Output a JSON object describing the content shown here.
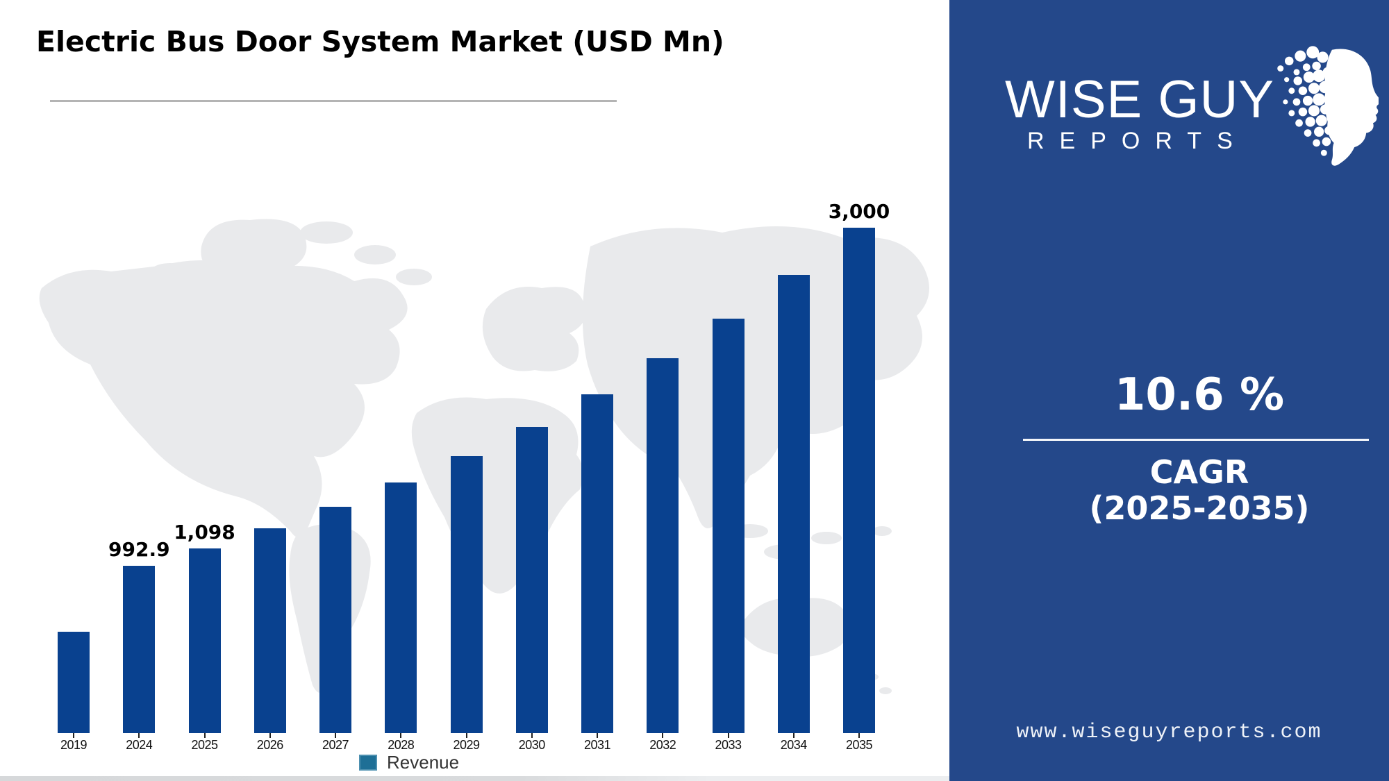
{
  "title": "Electric Bus Door System Market (USD Mn)",
  "legend": {
    "label": "Revenue"
  },
  "panel": {
    "logo_line1": "WISE GUY",
    "logo_line2": "REPORTS",
    "cagr_value": "10.6 %",
    "cagr_line1": "CAGR",
    "cagr_line2": "(2025-2035)",
    "website": "www.wiseguyreports.com"
  },
  "colors": {
    "bar": "#09418f",
    "panel_bg": "#24488a",
    "legend_swatch": "#1e6f96",
    "map": "#e9eaec",
    "title_text": "#000000",
    "white": "#ffffff"
  },
  "chart_data": {
    "type": "bar",
    "title": "Electric Bus Door System Market (USD Mn)",
    "xlabel": "",
    "ylabel": "Revenue (USD Mn)",
    "categories": [
      "2019",
      "2024",
      "2025",
      "2026",
      "2027",
      "2028",
      "2029",
      "2030",
      "2031",
      "2032",
      "2033",
      "2034",
      "2035"
    ],
    "series": [
      {
        "name": "Revenue",
        "values": [
          600,
          992.9,
          1098,
          1214,
          1343,
          1486,
          1643,
          1817,
          2010,
          2223,
          2459,
          2719,
          3000
        ]
      }
    ],
    "bar_labels": {
      "2024": "992.9",
      "2025": "1,098",
      "2035": "3,000"
    },
    "ylim": [
      0,
      3100
    ],
    "grid": false,
    "legend_position": "bottom",
    "cagr_note": "10.6 % CAGR (2025-2035)"
  }
}
